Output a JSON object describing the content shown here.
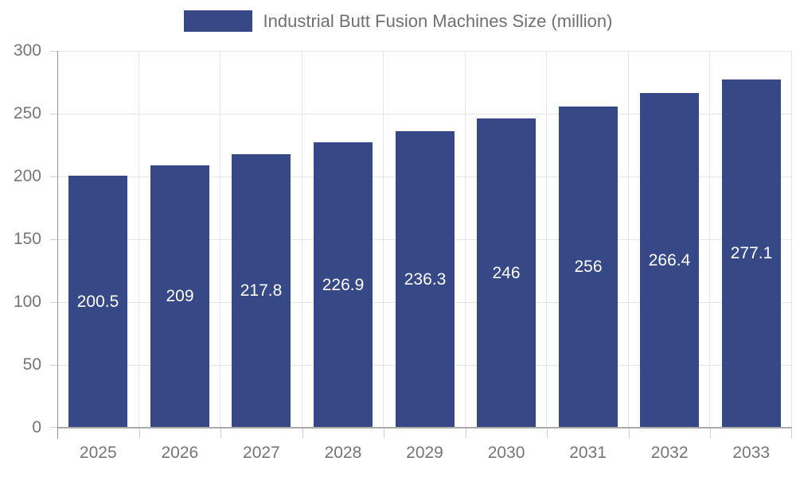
{
  "legend": {
    "label": "Industrial Butt Fusion Machines Size (million)"
  },
  "colors": {
    "bar": "#364886",
    "grid": "#e5e5e5",
    "axis": "#949494",
    "baseline": "#ababab",
    "tick_mark": "#cfcfcf",
    "tick_text": "#757575",
    "title_text": "#707070",
    "value_text": "#ffffff",
    "background": "#ffffff"
  },
  "chart_data": {
    "type": "bar",
    "title": "Industrial Butt Fusion Machines Size (million)",
    "categories": [
      "2025",
      "2026",
      "2027",
      "2028",
      "2029",
      "2030",
      "2031",
      "2032",
      "2033"
    ],
    "values": [
      200.5,
      209,
      217.8,
      226.9,
      236.3,
      246,
      256,
      266.4,
      277.1
    ],
    "xlabel": "",
    "ylabel": "",
    "ylim": [
      0,
      300
    ],
    "ytick_step": 50,
    "grid": true,
    "legend_position": "top",
    "value_labels": "inside-center"
  }
}
